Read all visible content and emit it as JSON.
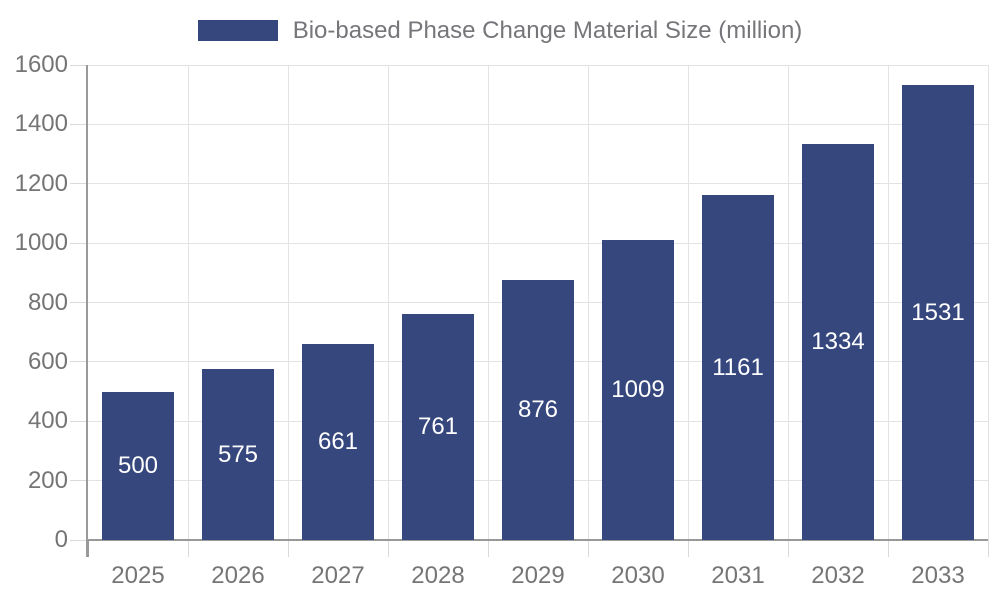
{
  "legend": {
    "label": "Bio-based Phase Change Material Size (million)"
  },
  "chart_data": {
    "type": "bar",
    "title": "Bio-based Phase Change Material Size (million)",
    "categories": [
      "2025",
      "2026",
      "2027",
      "2028",
      "2029",
      "2030",
      "2031",
      "2032",
      "2033"
    ],
    "values": [
      500,
      575,
      661,
      761,
      876,
      1009,
      1161,
      1334,
      1531
    ],
    "xlabel": "",
    "ylabel": "",
    "ylim": [
      0,
      1600
    ],
    "yticks": [
      0,
      200,
      400,
      600,
      800,
      1000,
      1200,
      1400,
      1600
    ],
    "grid": true,
    "legend_position": "top-center",
    "value_labels": "inside-center",
    "colors": {
      "bar": "#35477d",
      "value_label": "#ffffff",
      "axis_text": "#757575",
      "gridline": "#e3e3e3",
      "axis_line": "#999999",
      "tick_line": "#d9d9d9",
      "background": "#ffffff"
    }
  }
}
